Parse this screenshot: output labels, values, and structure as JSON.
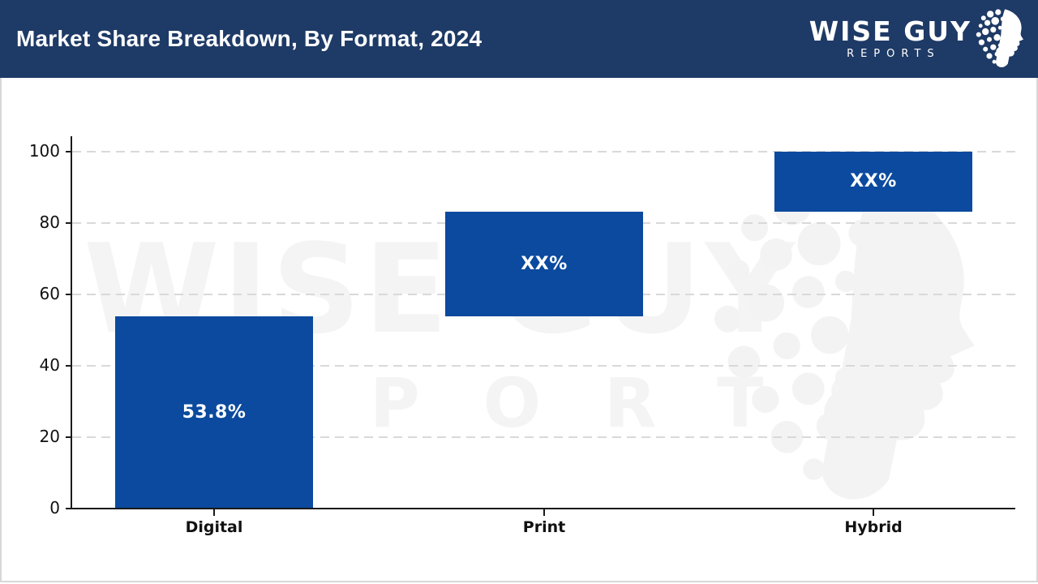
{
  "header": {
    "title": "Market Share Breakdown, By Format, 2024",
    "logo": {
      "line1": "WISE GUY",
      "line2": "REPORTS"
    }
  },
  "watermark": {
    "line1": "WISE GUY",
    "line2": "REPORTS"
  },
  "chart_data": {
    "type": "bar",
    "subtype": "floating-waterfall",
    "title": "Market Share Breakdown, By Format, 2024",
    "categories": [
      "Digital",
      "Print",
      "Hybrid"
    ],
    "segments": [
      {
        "category": "Digital",
        "label": "53.8%",
        "start": 0,
        "end": 53.8
      },
      {
        "category": "Print",
        "label": "XX%",
        "start": 53.8,
        "end": 83.2
      },
      {
        "category": "Hybrid",
        "label": "XX%",
        "start": 83.2,
        "end": 100
      }
    ],
    "yticks": [
      0,
      20,
      40,
      60,
      80,
      100
    ],
    "ylim": [
      0,
      104
    ],
    "xlabel": "",
    "ylabel": "",
    "grid": "horizontal-dashed",
    "legend": "none",
    "bar_color": "#0b4a9e",
    "bar_label_color": "#ffffff"
  },
  "colors": {
    "header_bg": "#1e3a66",
    "grid": "#d9d9d9",
    "watermark": "#f4f4f4",
    "axis": "#1a1a1a"
  }
}
